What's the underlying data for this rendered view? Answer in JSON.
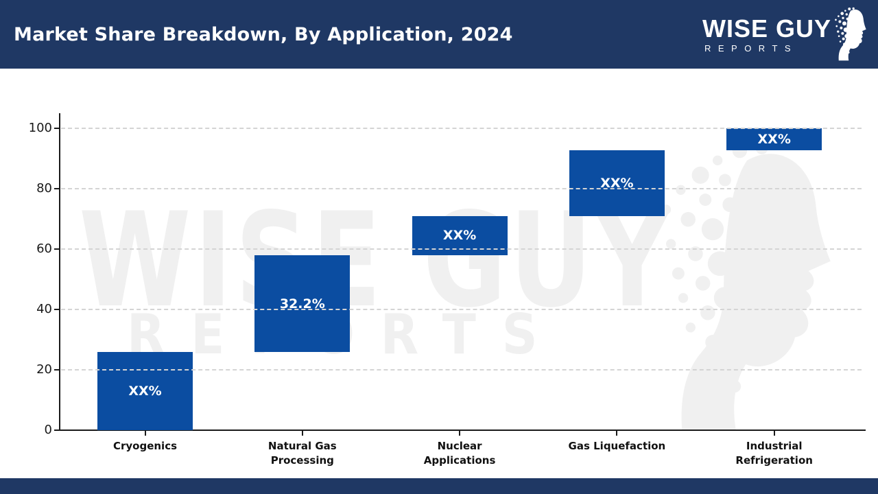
{
  "page": {
    "background": "#ffffff"
  },
  "header": {
    "title": "Market Share Breakdown, By Application, 2024",
    "logo": {
      "line1": "WISE GUY",
      "line2": "REPORTS"
    }
  },
  "watermark": {
    "line1": "WISE GUY",
    "line2": "REPORTS"
  },
  "colors": {
    "header_bg": "#1f3864",
    "footer_bg": "#1f3864",
    "bar": "#0b4da1",
    "bar_label": "#ffffff",
    "grid": "#d4d4d4",
    "axis": "#1a1a1a",
    "watermark": "#f0f0f0"
  },
  "chart_data": {
    "type": "bar",
    "subtype": "waterfall",
    "title": "Market Share Breakdown, By Application, 2024",
    "categories": [
      "Cryogenics",
      "Natural Gas Processing",
      "Nuclear Applications",
      "Gas Liquefaction",
      "Industrial Refrigeration"
    ],
    "segments": [
      {
        "category": "Cryogenics",
        "label_lines": [
          "Cryogenics"
        ],
        "start": 0,
        "end": 25.8,
        "height": 25.8,
        "label": "XX%"
      },
      {
        "category": "Natural Gas Processing",
        "label_lines": [
          "Natural Gas",
          "Processing"
        ],
        "start": 25.8,
        "end": 58.0,
        "height": 32.2,
        "label": "32.2%"
      },
      {
        "category": "Nuclear Applications",
        "label_lines": [
          "Nuclear",
          "Applications"
        ],
        "start": 58.0,
        "end": 71.0,
        "height": 13.0,
        "label": "XX%"
      },
      {
        "category": "Gas Liquefaction",
        "label_lines": [
          "Gas Liquefaction"
        ],
        "start": 71.0,
        "end": 92.8,
        "height": 21.8,
        "label": "XX%"
      },
      {
        "category": "Industrial Refrigeration",
        "label_lines": [
          "Industrial",
          "Refrigeration"
        ],
        "start": 92.8,
        "end": 100.0,
        "height": 7.2,
        "label": "XX%"
      }
    ],
    "yticks": [
      0,
      20,
      40,
      60,
      80,
      100
    ],
    "ylim": [
      0,
      105
    ],
    "xlabel": "",
    "ylabel": "",
    "grid": {
      "axis": "y",
      "style": "dashed",
      "drawn_above_bars": true
    },
    "legend": "none"
  }
}
